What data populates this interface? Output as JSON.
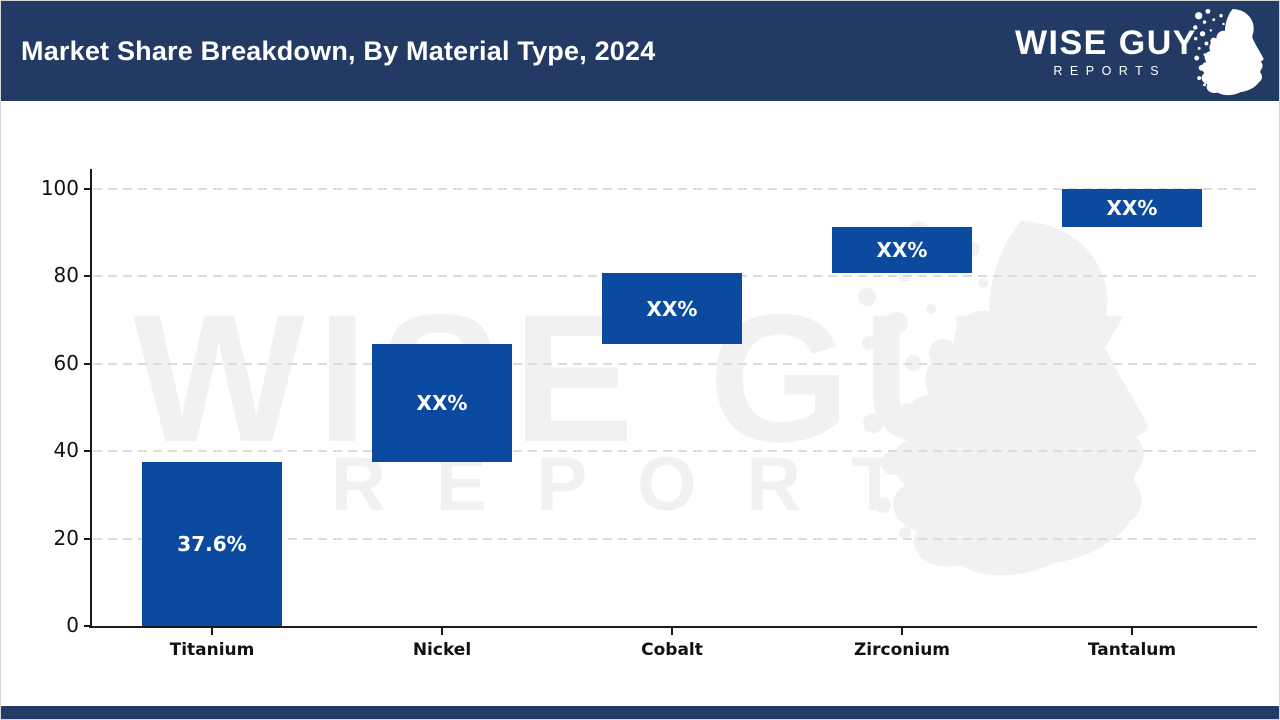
{
  "header": {
    "title": "Market Share Breakdown, By Material Type, 2024",
    "logo": {
      "line1": "WISE GUY",
      "line2": "REPORTS"
    }
  },
  "watermark": {
    "line1": "WISE GUY",
    "line2": "REPORTS"
  },
  "colors": {
    "header_navy": "#233A64",
    "bar_blue": "#0B4A9E",
    "gridline_gray": "#DCDCDC",
    "axis_black": "#1A1A1A",
    "watermark_gray": "#F1F1F3"
  },
  "chart_data": {
    "type": "bar",
    "subtype": "waterfall",
    "title": "Market Share Breakdown, By Material Type, 2024",
    "categories": [
      "Titanium",
      "Nickel",
      "Cobalt",
      "Zirconium",
      "Tantalum"
    ],
    "segments": [
      {
        "category": "Titanium",
        "start": 0,
        "end": 37.6,
        "value": 37.6,
        "label": "37.6%"
      },
      {
        "category": "Nickel",
        "start": 37.6,
        "end": 64.4,
        "value": 26.8,
        "label": "XX%"
      },
      {
        "category": "Cobalt",
        "start": 64.4,
        "end": 80.6,
        "value": 16.2,
        "label": "XX%"
      },
      {
        "category": "Zirconium",
        "start": 80.6,
        "end": 91.2,
        "value": 10.6,
        "label": "XX%"
      },
      {
        "category": "Tantalum",
        "start": 91.2,
        "end": 100,
        "value": 8.8,
        "label": "XX%"
      }
    ],
    "xlabel": "",
    "ylabel": "",
    "ylim": [
      0,
      104
    ],
    "yticks": [
      0,
      20,
      40,
      60,
      80,
      100
    ],
    "grid": "dashed-horizontal",
    "legend": "none",
    "bar_color": "#0B4A9E",
    "label_color": "#FFFFFF"
  }
}
